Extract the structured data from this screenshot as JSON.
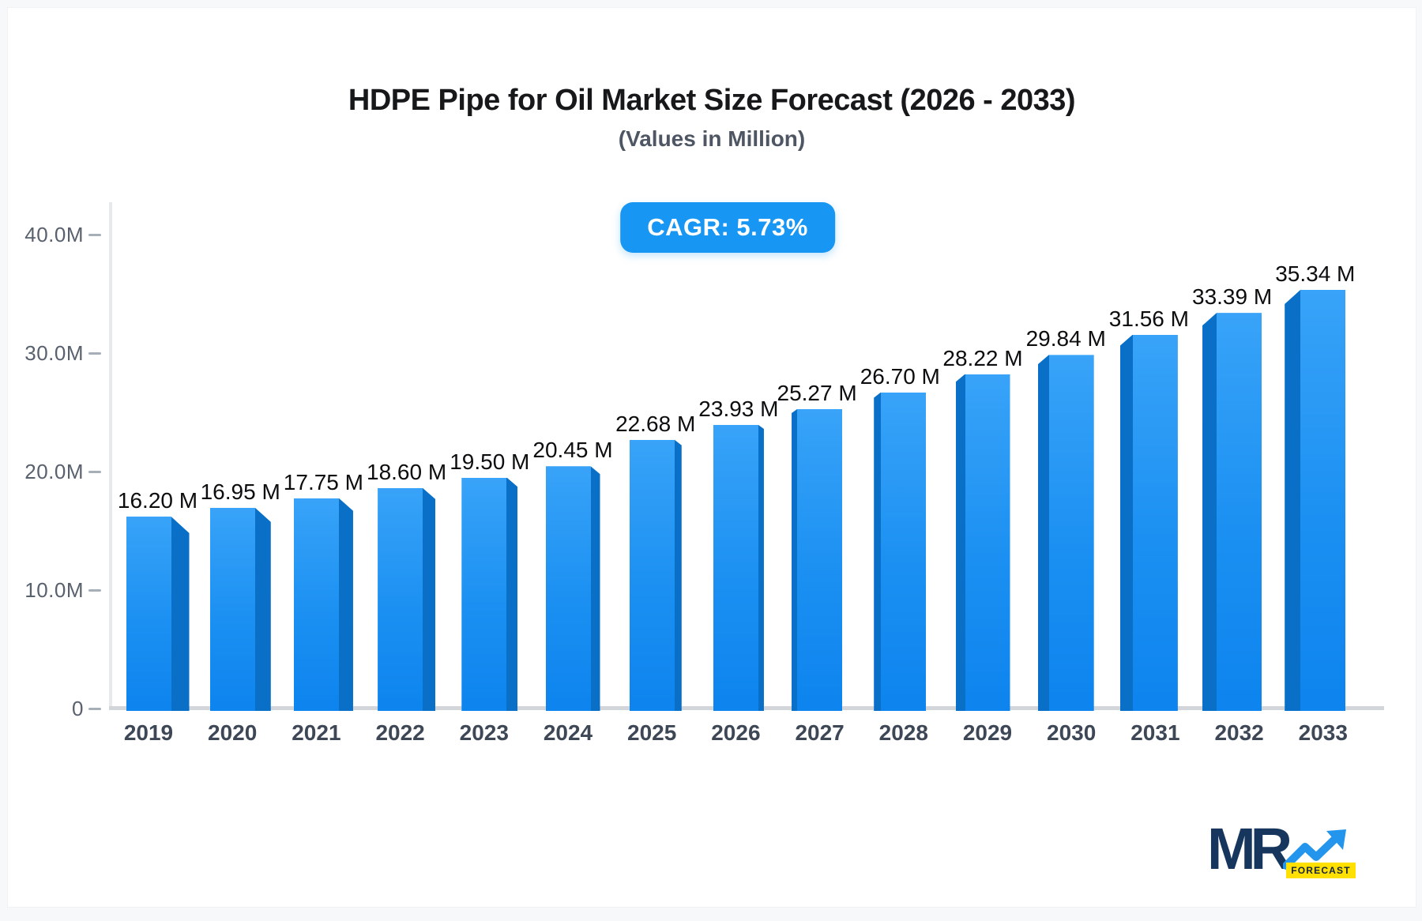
{
  "header": {
    "title": "HDPE Pipe for Oil Market Size Forecast (2026 - 2033)",
    "subtitle": "(Values in Million)"
  },
  "badge": {
    "label": "CAGR: 5.73%"
  },
  "chart_data": {
    "type": "bar",
    "title": "HDPE Pipe for Oil Market Size Forecast (2026 - 2033)",
    "subtitle": "(Values in Million)",
    "categories": [
      "2019",
      "2020",
      "2021",
      "2022",
      "2023",
      "2024",
      "2025",
      "2026",
      "2027",
      "2028",
      "2029",
      "2030",
      "2031",
      "2032",
      "2033"
    ],
    "values": [
      16.2,
      16.95,
      17.75,
      18.6,
      19.5,
      20.45,
      22.68,
      23.93,
      25.27,
      26.7,
      28.22,
      29.84,
      31.56,
      33.39,
      35.34
    ],
    "value_suffix": " M",
    "xlabel": "",
    "ylabel": "",
    "ylim": [
      0,
      40
    ],
    "ytick_values": [
      40,
      30,
      20,
      10,
      0
    ],
    "ytick_labels": [
      "40.0M",
      "30.0M",
      "20.0M",
      "10.0M",
      "0"
    ],
    "grid": false,
    "legend": false,
    "style": "3d-perspective-bars"
  },
  "colors": {
    "page_bg": "#f6f8fa",
    "card_bg": "#ffffff",
    "accent_blue": "#1796f3",
    "bar_top": "#38a3f8",
    "bar_mid": "#1b90f2",
    "bar_bottom": "#0d84ee",
    "bar_side": "#0a6fc6",
    "axis_line": "#e7e9ed",
    "baseline": "#d2d6db",
    "tick_text": "#59616e",
    "year_text": "#3d4756",
    "value_text": "#0c0d0e",
    "title_text": "#17181a",
    "subtitle_text": "#4d5662",
    "logo_navy": "#17365e",
    "logo_yellow": "#ffe000",
    "logo_arrow": "#2395ec"
  },
  "logo": {
    "text": "MR",
    "badge": "FORECAST"
  }
}
